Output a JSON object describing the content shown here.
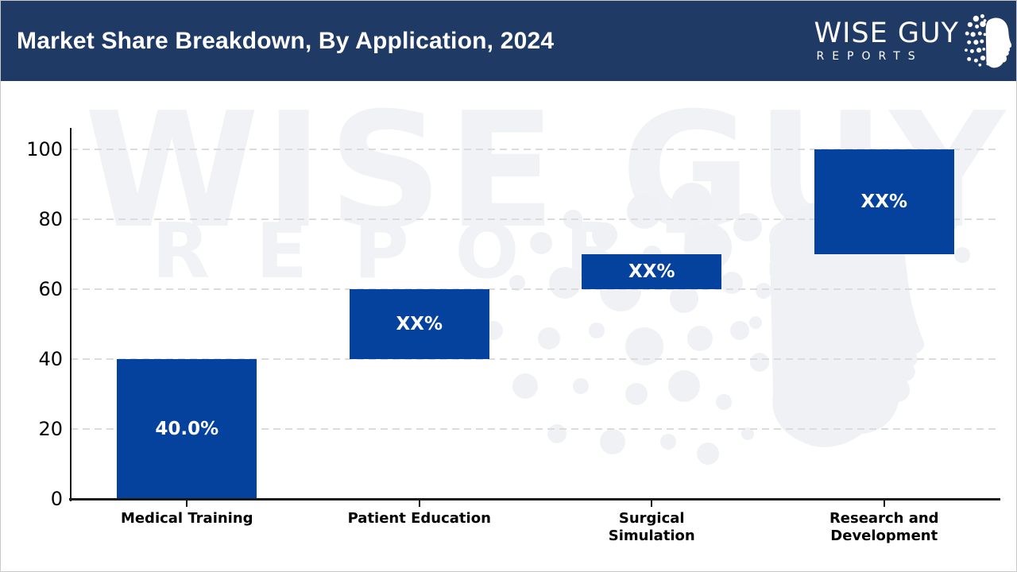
{
  "header": {
    "title": "Market Share Breakdown, By Application, 2024",
    "logo": {
      "name": "WISE GUY",
      "subtitle": "REPORTS"
    }
  },
  "watermark": {
    "line1": "WISE GUY",
    "line2": "REPORTS"
  },
  "chart_data": {
    "type": "bar",
    "subtype": "waterfall",
    "title": "Market Share Breakdown, By Application, 2024",
    "categories": [
      "Medical Training",
      "Patient Education",
      "Surgical Simulation",
      "Research and Development"
    ],
    "category_tick_labels": [
      "Medical Training",
      "Patient Education",
      "Surgical\nSimulation",
      "Research and\nDevelopment"
    ],
    "segments": [
      {
        "category": "Medical Training",
        "start": 0,
        "end": 40,
        "value": 40,
        "label": "40.0%"
      },
      {
        "category": "Patient Education",
        "start": 40,
        "end": 60,
        "value": 20,
        "label": "XX%"
      },
      {
        "category": "Surgical Simulation",
        "start": 60,
        "end": 70,
        "value": 10,
        "label": "XX%"
      },
      {
        "category": "Research and Development",
        "start": 70,
        "end": 100,
        "value": 30,
        "label": "XX%"
      }
    ],
    "yticks": [
      0,
      20,
      40,
      60,
      80,
      100
    ],
    "ylim": [
      0,
      106
    ],
    "xlabel": "",
    "ylabel": "",
    "grid": "horizontal-dashed",
    "legend": "none",
    "bar_color": "#05429d",
    "label_on_bar_color": "#ffffff"
  },
  "colors": {
    "header_bg": "#1f3a64",
    "bar": "#05429d",
    "grid": "#dcdcdc",
    "axis": "#1a1a1a",
    "text": "#000000",
    "watermark": "#f1f2f5",
    "frame_border": "#c9c9c9"
  }
}
